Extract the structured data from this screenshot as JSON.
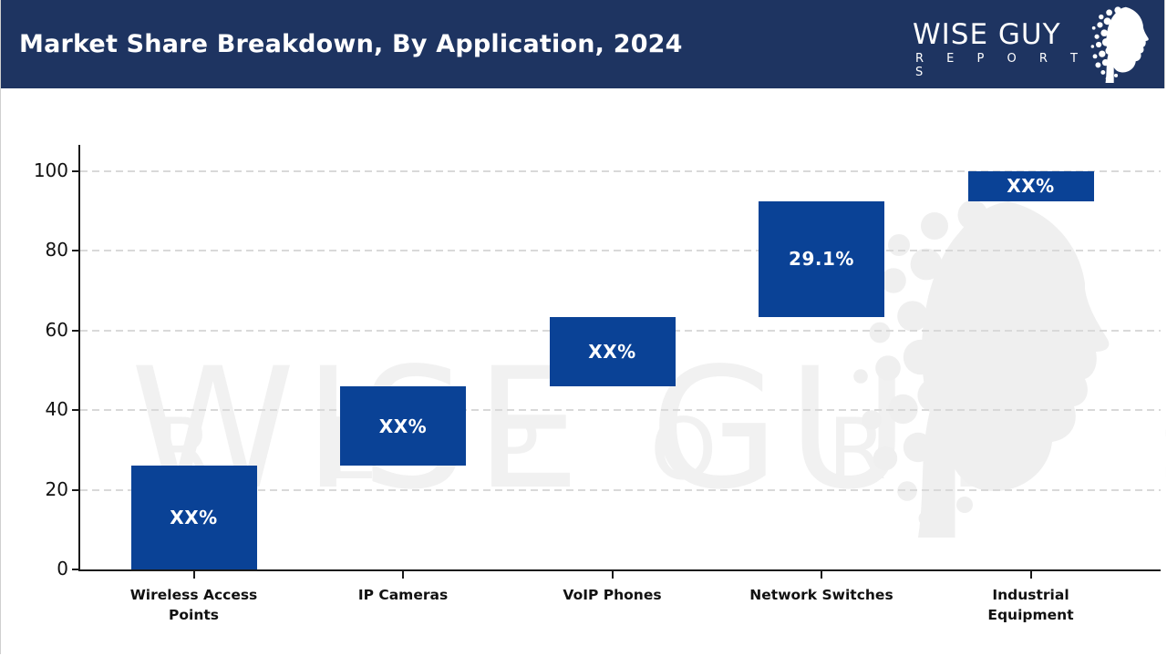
{
  "header": {
    "title": "Market Share Breakdown, By Application, 2024",
    "logo": {
      "line1": "WISE GUY",
      "line2": "REPORTS"
    }
  },
  "watermark": {
    "line1": "WISE GUY",
    "line2": "REPORTS"
  },
  "chart_data": {
    "type": "bar",
    "subtype": "waterfall-floating-segments",
    "title": "Market Share Breakdown, By Application, 2024",
    "categories": [
      "Wireless Access Points",
      "IP Cameras",
      "VoIP Phones",
      "Network Switches",
      "Industrial Equipment"
    ],
    "category_lines": [
      [
        "Wireless Access",
        "Points"
      ],
      [
        "IP Cameras"
      ],
      [
        "VoIP Phones"
      ],
      [
        "Network Switches"
      ],
      [
        "Industrial",
        "Equipment"
      ]
    ],
    "series": [
      {
        "name": "Market Share",
        "segments": [
          {
            "category": "Wireless Access Points",
            "from": 0,
            "to": 26,
            "label": "XX%"
          },
          {
            "category": "IP Cameras",
            "from": 26,
            "to": 46,
            "label": "XX%"
          },
          {
            "category": "VoIP Phones",
            "from": 46,
            "to": 63.3,
            "label": "XX%"
          },
          {
            "category": "Network Switches",
            "from": 63.3,
            "to": 92.4,
            "label": "29.1%",
            "value": 29.1
          },
          {
            "category": "Industrial Equipment",
            "from": 92.4,
            "to": 100,
            "label": "XX%"
          }
        ]
      }
    ],
    "ylim": [
      0,
      100
    ],
    "yticks": [
      "0",
      "20",
      "40",
      "60",
      "80",
      "100"
    ],
    "grid": "horizontal dashed",
    "legend": "none",
    "bar_color": "#0a4296",
    "bar_label_color": "#ffffff"
  },
  "colors": {
    "header_bg": "#1e3461",
    "bar": "#0a4296",
    "gridline": "#d9d9d9",
    "axis": "#1a1a1a",
    "watermark": "#f1f1f1",
    "page_border": "#cfcfcf"
  }
}
